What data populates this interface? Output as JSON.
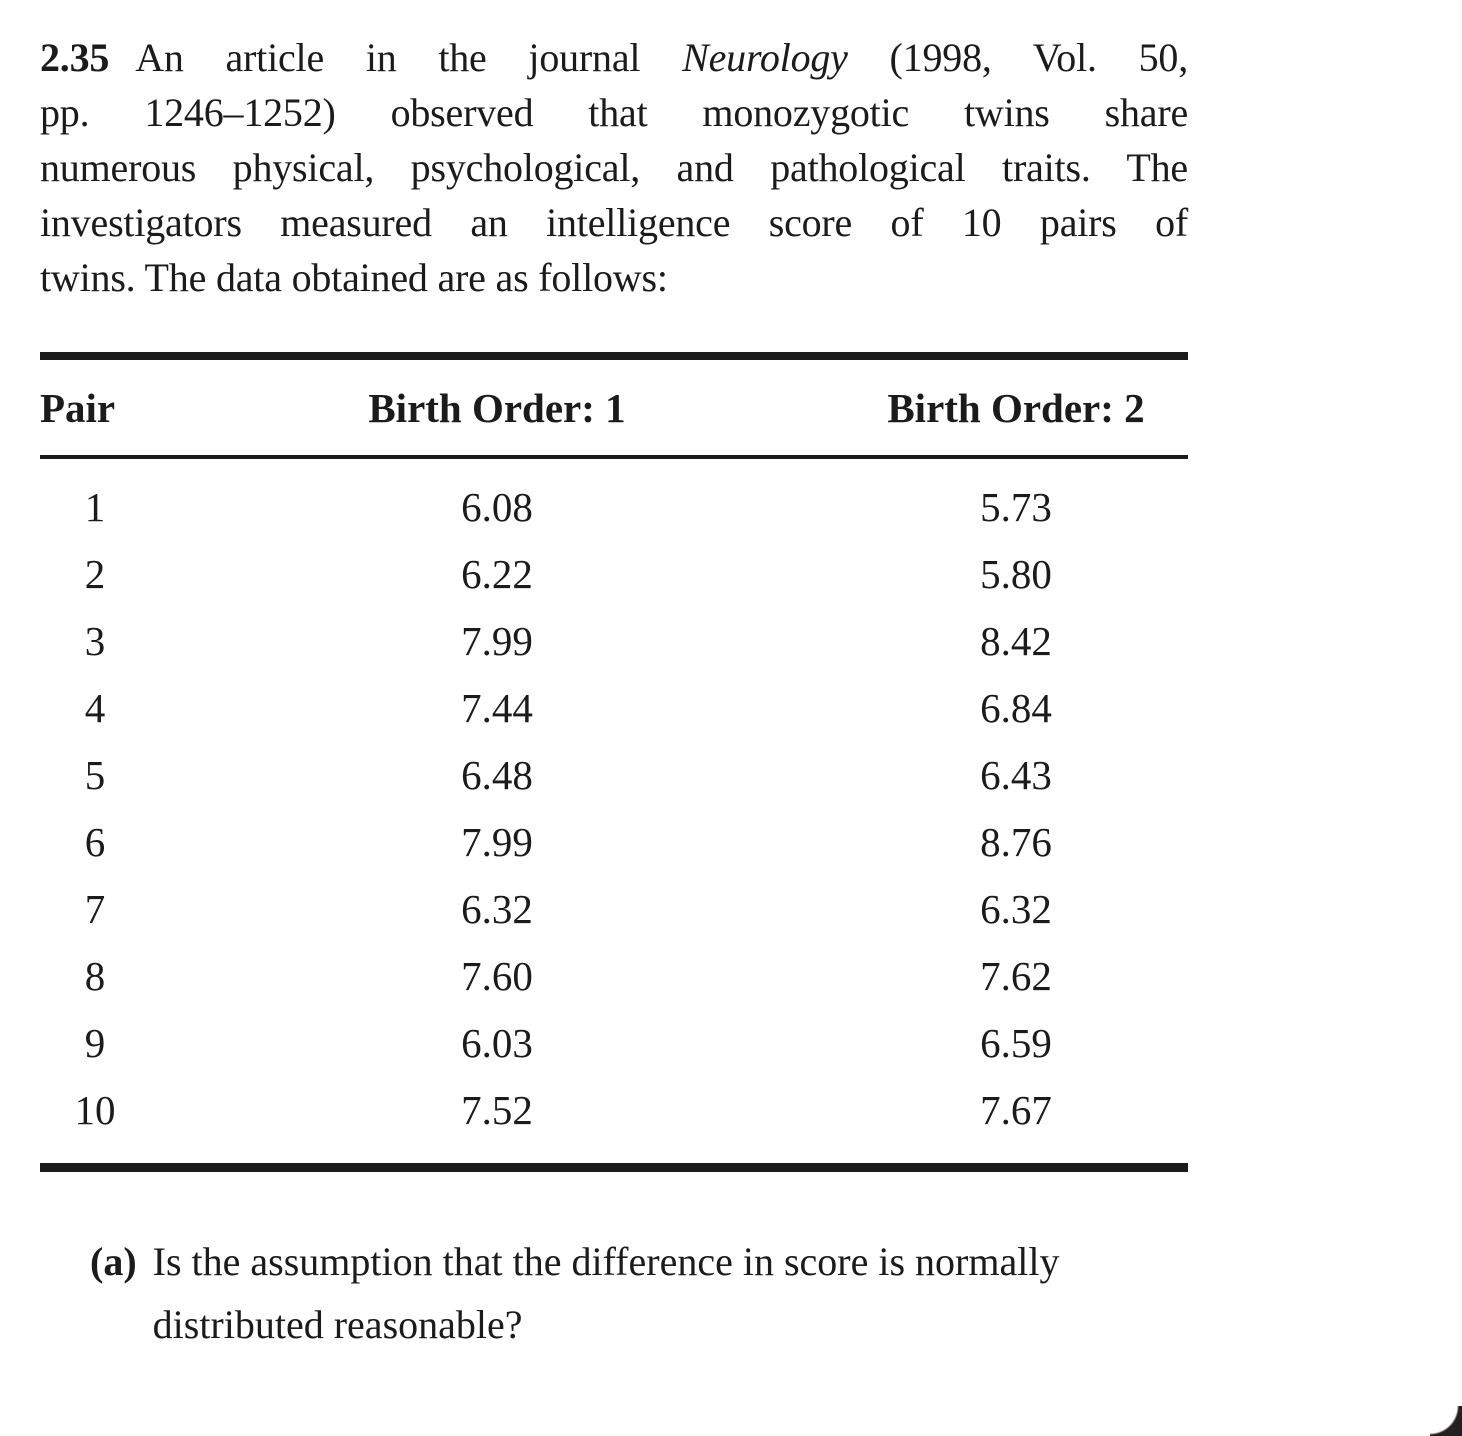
{
  "page": {
    "background": "#ffffff",
    "text_color": "#1b1b1b"
  },
  "problem": {
    "number": "2.35",
    "lines": [
      {
        "justify": true,
        "segments": [
          {
            "text": "2.35",
            "bold": true
          },
          {
            "gap": true
          },
          {
            "text": "An article in the journal "
          },
          {
            "text": "Neurology",
            "italic": true
          },
          {
            "text": " (1998, Vol. 50,"
          }
        ]
      },
      {
        "justify": true,
        "segments": [
          {
            "text": "pp. 1246–1252) observed that monozygotic twins share"
          }
        ]
      },
      {
        "justify": true,
        "segments": [
          {
            "text": "numerous physical, psychological, and pathological traits. The"
          }
        ]
      },
      {
        "justify": true,
        "segments": [
          {
            "text": "investigators measured an intelligence score of 10 pairs of"
          }
        ]
      },
      {
        "justify": false,
        "segments": [
          {
            "text": "twins. The data obtained are as follows:"
          }
        ]
      }
    ]
  },
  "table": {
    "headers": [
      "Pair",
      "Birth Order: 1",
      "Birth Order: 2"
    ],
    "rows": [
      {
        "pair": "1",
        "order1": "6.08",
        "order2": "5.73"
      },
      {
        "pair": "2",
        "order1": "6.22",
        "order2": "5.80"
      },
      {
        "pair": "3",
        "order1": "7.99",
        "order2": "8.42"
      },
      {
        "pair": "4",
        "order1": "7.44",
        "order2": "6.84"
      },
      {
        "pair": "5",
        "order1": "6.48",
        "order2": "6.43"
      },
      {
        "pair": "6",
        "order1": "7.99",
        "order2": "8.76"
      },
      {
        "pair": "7",
        "order1": "6.32",
        "order2": "6.32"
      },
      {
        "pair": "8",
        "order1": "7.60",
        "order2": "7.62"
      },
      {
        "pair": "9",
        "order1": "6.03",
        "order2": "6.59"
      },
      {
        "pair": "10",
        "order1": "7.52",
        "order2": "7.67"
      }
    ]
  },
  "question": {
    "label": "(a)",
    "lines": [
      "Is the assumption that the difference in score is normally",
      "distributed reasonable?"
    ]
  }
}
